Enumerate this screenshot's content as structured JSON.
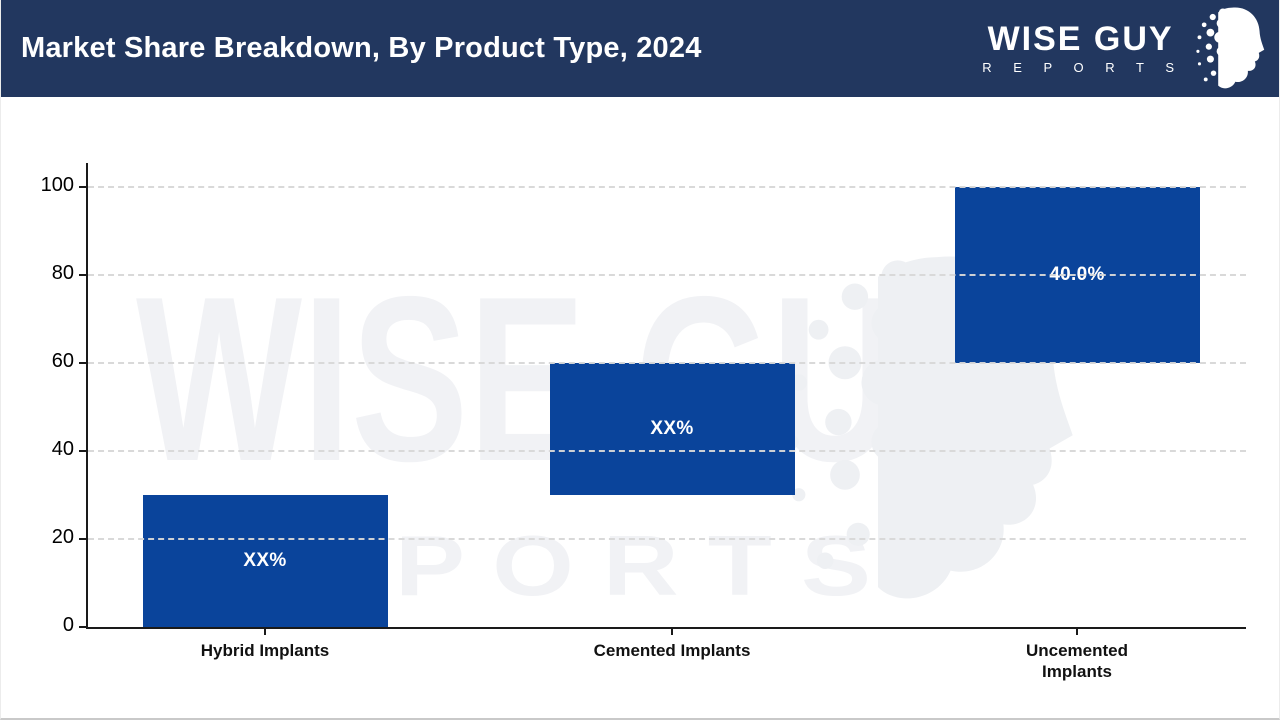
{
  "header": {
    "title": "Market Share Breakdown, By Product Type, 2024",
    "logo_line1": "WISE GUY",
    "logo_line2": "R E P O R T S"
  },
  "watermark": {
    "line1": "WISE GUY",
    "line2": "R E P O R T S"
  },
  "chart_data": {
    "type": "bar",
    "subtype": "floating-segment-waterfall",
    "title": "Market Share Breakdown, By Product Type, 2024",
    "categories": [
      "Hybrid Implants",
      "Cemented Implants",
      "Uncemented\nImplants"
    ],
    "segments": [
      {
        "category": "Hybrid Implants",
        "start": 0,
        "end": 30,
        "label": "XX%"
      },
      {
        "category": "Cemented Implants",
        "start": 30,
        "end": 60,
        "label": "XX%"
      },
      {
        "category": "Uncemented Implants",
        "start": 60,
        "end": 100,
        "label": "40.0%"
      }
    ],
    "yticks": [
      0,
      20,
      40,
      60,
      80,
      100
    ],
    "ylim": [
      0,
      100
    ],
    "xlabel": "",
    "ylabel": "",
    "grid": "horizontal-dashed",
    "legend": "none",
    "colors": {
      "bar": "#0a449b",
      "bar_label": "#ffffff",
      "header_bg": "#22375f",
      "grid": "#d8d8d8",
      "axis": "#1a1a1a",
      "watermark": "#f1f2f5"
    }
  }
}
